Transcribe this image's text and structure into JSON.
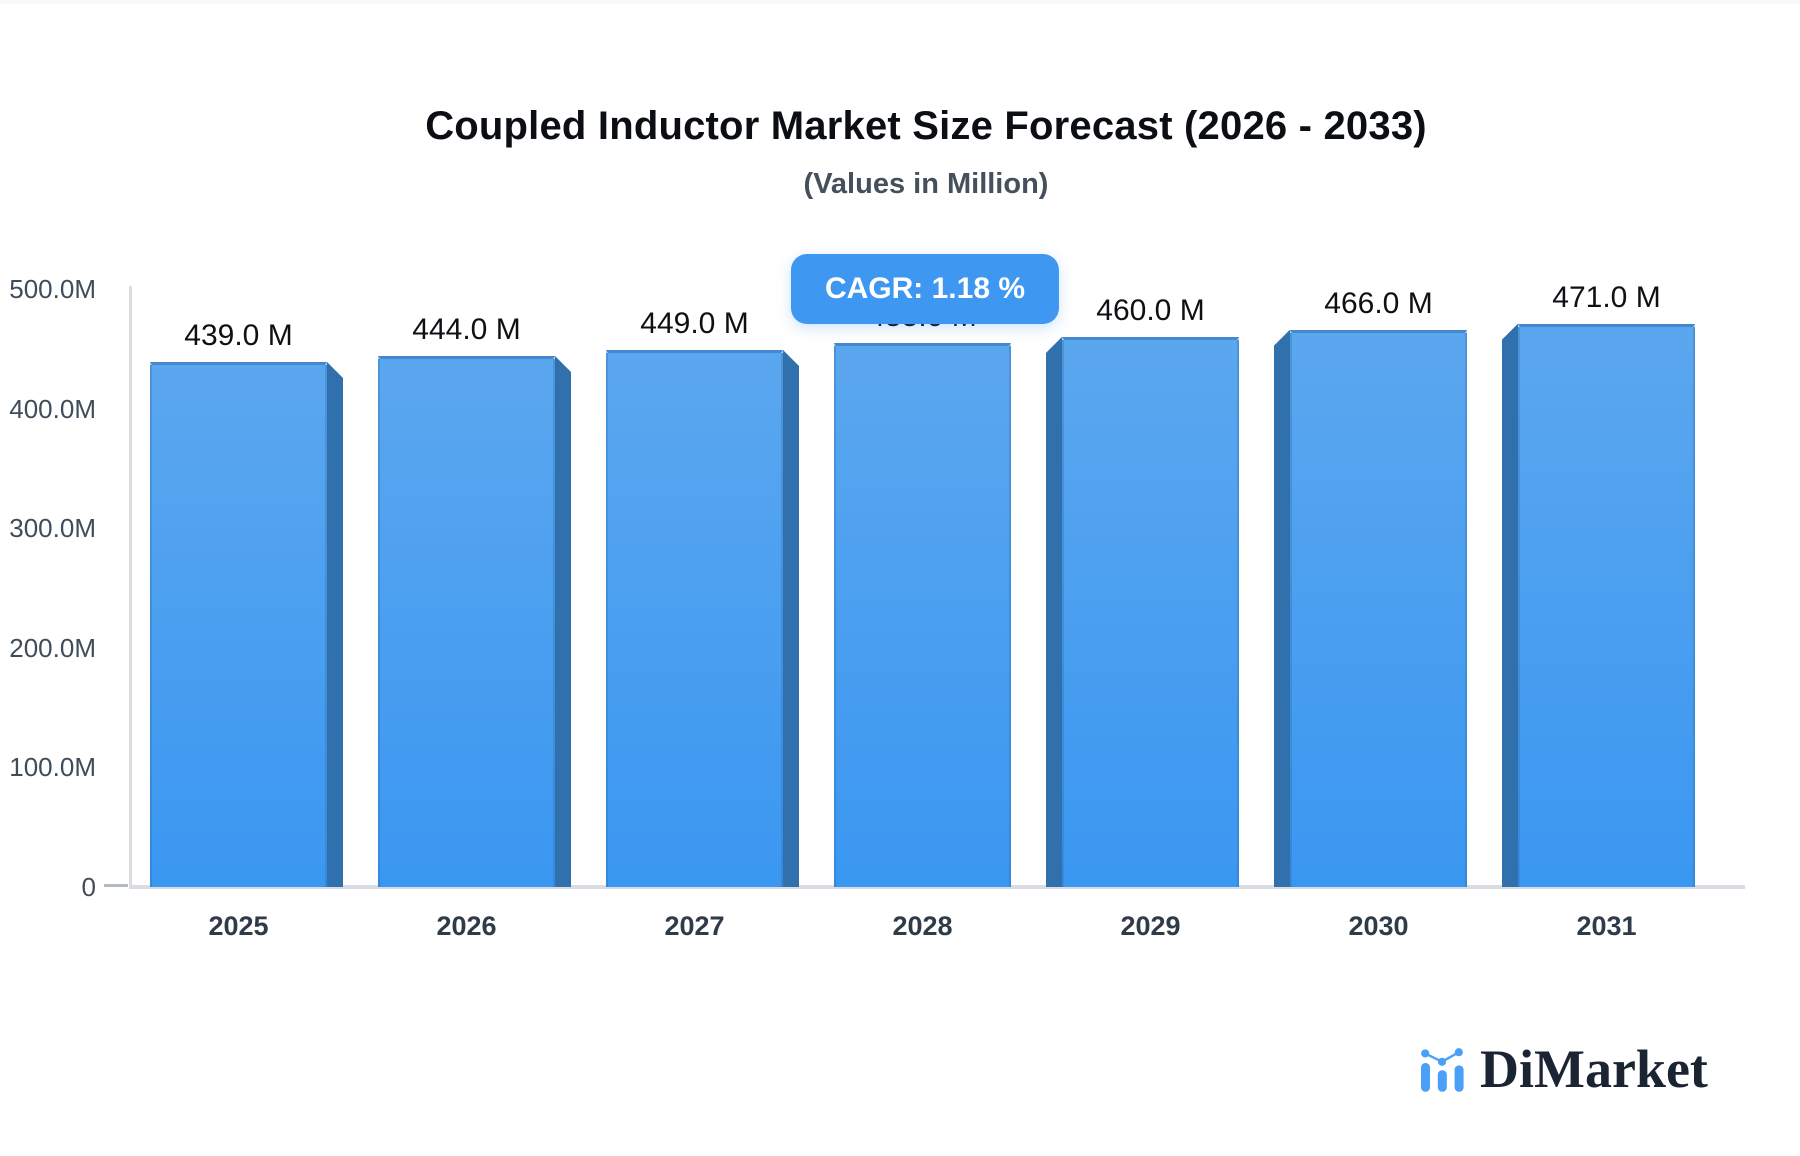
{
  "page": {
    "top_strip_color": "#f7f8fa"
  },
  "chart_data": {
    "type": "bar",
    "title": "Coupled Inductor Market Size Forecast (2026 - 2033)",
    "subtitle": "(Values in Million)",
    "categories": [
      "2025",
      "2026",
      "2027",
      "2028",
      "2029",
      "2030",
      "2031"
    ],
    "values": [
      439,
      444,
      449,
      455,
      460,
      466,
      471
    ],
    "value_labels": [
      "439.0 M",
      "444.0 M",
      "449.0 M",
      "455.0 M",
      "460.0 M",
      "466.0 M",
      "471.0 M"
    ],
    "ylim": [
      0,
      500
    ],
    "y_ticks": [
      {
        "value": 500,
        "label": "500.0M"
      },
      {
        "value": 400,
        "label": "400.0M"
      },
      {
        "value": 300,
        "label": "300.0M"
      },
      {
        "value": 200,
        "label": "200.0M"
      },
      {
        "value": 100,
        "label": "100.0M"
      },
      {
        "value": 0,
        "label": "0"
      }
    ],
    "grid": "off",
    "legend": "none",
    "annotation": {
      "label": "CAGR: 1.18 %",
      "bg_color": "#3e97f0",
      "text_color": "#ffffff"
    },
    "colors": {
      "bar_face_top": "#5ba7ef",
      "bar_face_bottom": "#3a97f1",
      "bar_side": "#2f70ad",
      "bar_top_edge": "#4488cf",
      "axis_line": "#d9dce0",
      "tick_text": "#404c5a",
      "category_text": "#303b49",
      "value_text": "#0e1013"
    }
  },
  "logo": {
    "text": "DiMarket",
    "icon": "mini-bar-chart-icon",
    "text_color": "#1b2432",
    "icon_color": "#4aa0f6"
  }
}
